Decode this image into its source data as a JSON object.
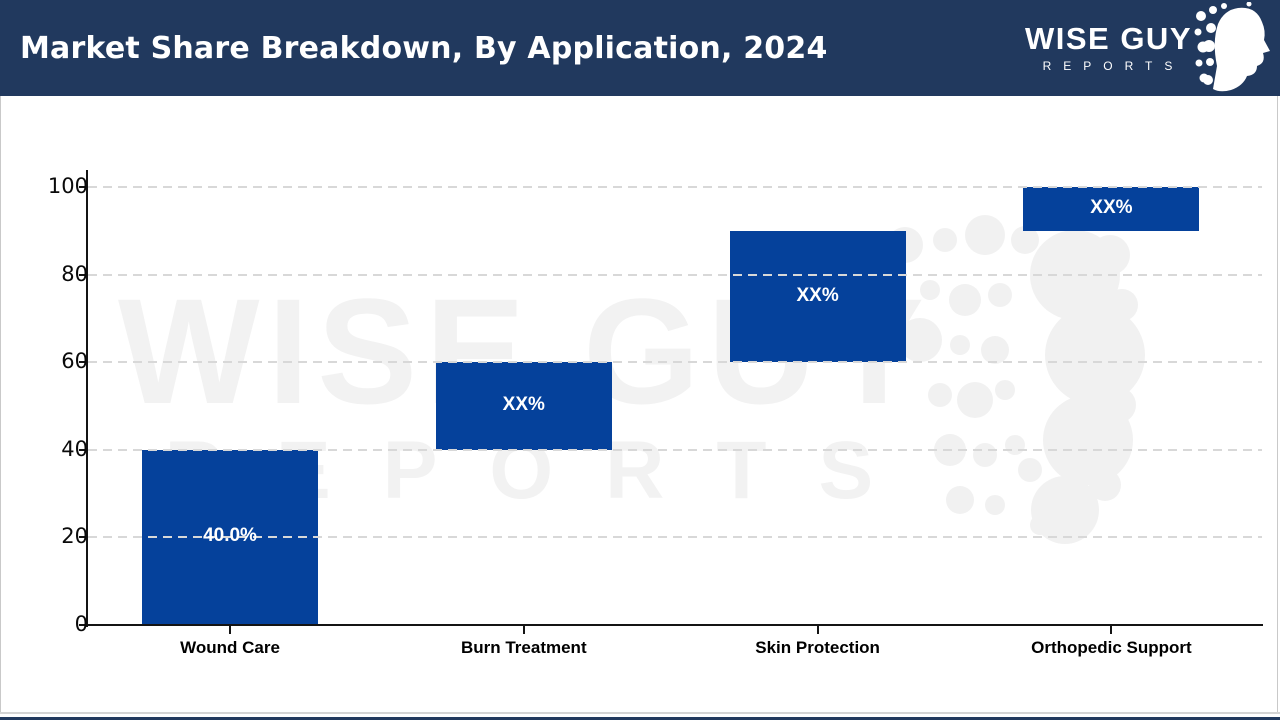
{
  "header": {
    "title": "Market Share Breakdown, By Application, 2024",
    "logo_line1": "WISE GUY",
    "logo_line2": "REPORTS"
  },
  "watermark": {
    "line1": "WISE GUY",
    "line2": "REPORTS"
  },
  "colors": {
    "header_bg": "#21395e",
    "bar": "#05419b",
    "grid": "#d8d8d8",
    "axis": "#141414",
    "watermark": "#f2f2f2",
    "value_label": "#ffffff"
  },
  "chart_data": {
    "type": "bar",
    "subtype": "waterfall-floating-bars",
    "title": "Market Share Breakdown, By Application, 2024",
    "categories": [
      "Wound Care",
      "Burn Treatment",
      "Skin Protection",
      "Orthopedic Support"
    ],
    "bars": [
      {
        "category": "Wound Care",
        "start": 0,
        "end": 40,
        "value_label": "40.0%"
      },
      {
        "category": "Burn Treatment",
        "start": 40,
        "end": 60,
        "value_label": "XX%"
      },
      {
        "category": "Skin Protection",
        "start": 60,
        "end": 90,
        "value_label": "XX%"
      },
      {
        "category": "Orthopedic Support",
        "start": 90,
        "end": 100,
        "value_label": "XX%"
      }
    ],
    "yticks": [
      0,
      20,
      40,
      60,
      80,
      100
    ],
    "ylim": [
      0,
      100
    ],
    "xlabel": "",
    "ylabel": "",
    "grid": true,
    "grid_style": "dashed",
    "legend": "none",
    "bar_color": "#05419b"
  }
}
